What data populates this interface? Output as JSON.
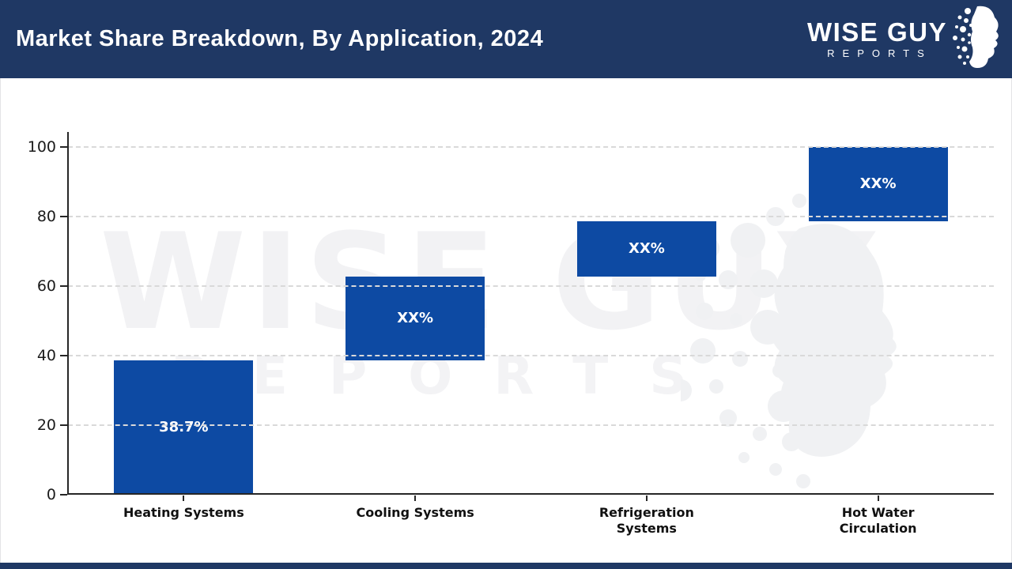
{
  "header": {
    "title": "Market Share Breakdown, By Application, 2024",
    "logo": {
      "main": "WISE GUY",
      "sub": "REPORTS"
    }
  },
  "watermark": {
    "line1": "WISE GUY",
    "line2": "REPORTS"
  },
  "chart_data": {
    "type": "bar",
    "subtype": "waterfall",
    "title": "Market Share Breakdown, By Application, 2024",
    "categories": [
      "Heating Systems",
      "Cooling Systems",
      "Refrigeration\nSystems",
      "Hot Water\nCirculation"
    ],
    "segments": [
      {
        "category": "Heating Systems",
        "start": 0,
        "end": 38.7,
        "label": "38.7%"
      },
      {
        "category": "Cooling Systems",
        "start": 38.7,
        "end": 62.8,
        "label": "XX%"
      },
      {
        "category": "Refrigeration Systems",
        "start": 62.8,
        "end": 78.7,
        "label": "XX%"
      },
      {
        "category": "Hot Water Circulation",
        "start": 78.7,
        "end": 100,
        "label": "XX%"
      }
    ],
    "ylim": [
      0,
      100
    ],
    "yticks": [
      0,
      20,
      40,
      60,
      80,
      100
    ],
    "grid": "horizontal-dashed",
    "legend": "none",
    "bar_color": "#0d4aa3",
    "value_label_color": "#ffffff"
  },
  "colors": {
    "header_bg": "#1f3864",
    "footer_bg": "#1f3864",
    "bar": "#0d4aa3",
    "gridline": "#d9d9d9",
    "axis": "#262626",
    "watermark": "#f2f2f4"
  }
}
